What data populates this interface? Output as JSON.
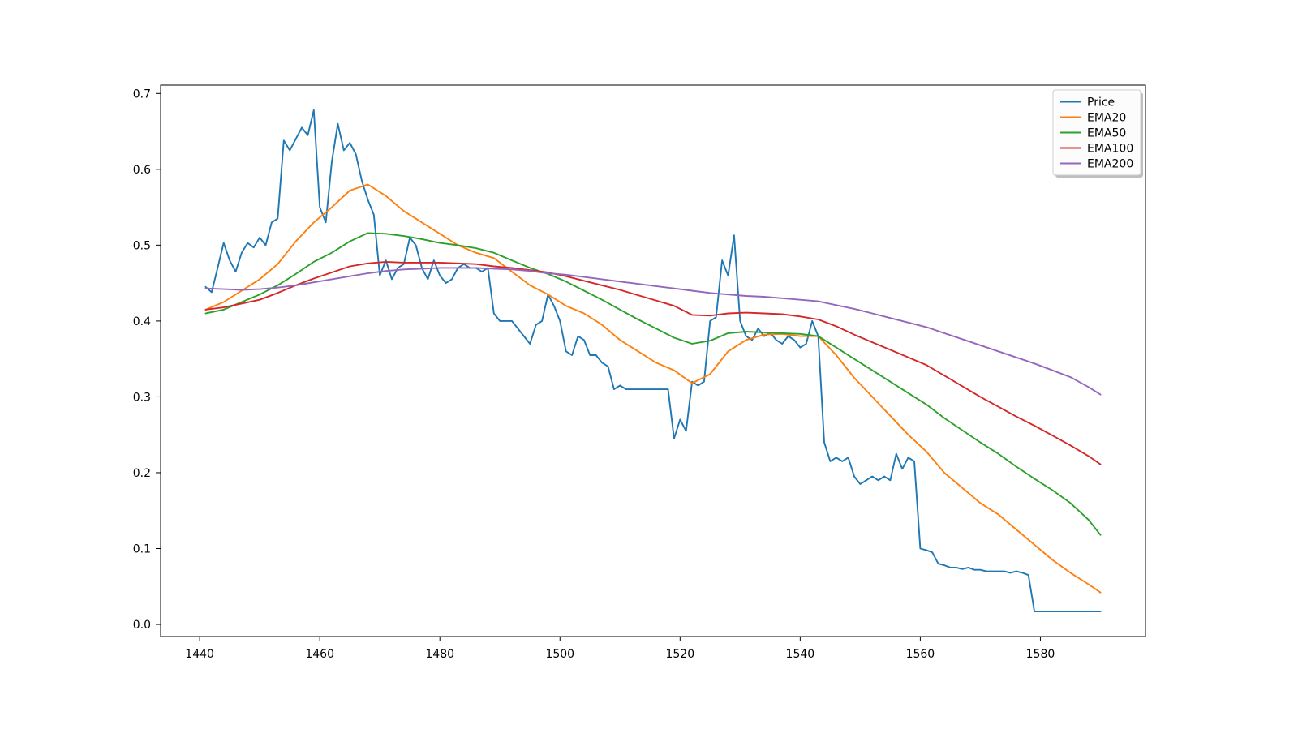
{
  "figure": {
    "background": "#ffffff"
  },
  "chart_data": {
    "type": "line",
    "title": "",
    "xlabel": "",
    "ylabel": "",
    "grid": false,
    "xlim": [
      1433.5,
      1597.5
    ],
    "ylim": [
      -0.016,
      0.711
    ],
    "x_ticks": [
      1440,
      1460,
      1480,
      1500,
      1520,
      1540,
      1560,
      1580
    ],
    "y_ticks": [
      0.0,
      0.1,
      0.2,
      0.3,
      0.4,
      0.5,
      0.6,
      0.7
    ],
    "legend": {
      "location": "upper right",
      "entries": [
        "Price",
        "EMA20",
        "EMA50",
        "EMA100",
        "EMA200"
      ]
    },
    "ema_x": [
      1441,
      1444,
      1447,
      1450,
      1453,
      1456,
      1459,
      1462,
      1465,
      1468,
      1471,
      1474,
      1477,
      1480,
      1483,
      1486,
      1489,
      1492,
      1495,
      1498,
      1501,
      1504,
      1507,
      1510,
      1513,
      1516,
      1519,
      1522,
      1525,
      1528,
      1531,
      1534,
      1537,
      1540,
      1543,
      1546,
      1549,
      1552,
      1555,
      1558,
      1561,
      1564,
      1567,
      1570,
      1573,
      1576,
      1579,
      1582,
      1585,
      1588,
      1590
    ],
    "series": [
      {
        "name": "Price",
        "color": "#1f77b4",
        "x_start": 1441,
        "x_step": 1,
        "y": [
          0.445,
          0.438,
          0.47,
          0.503,
          0.48,
          0.465,
          0.49,
          0.503,
          0.497,
          0.51,
          0.5,
          0.53,
          0.535,
          0.638,
          0.625,
          0.64,
          0.655,
          0.645,
          0.678,
          0.55,
          0.53,
          0.61,
          0.66,
          0.625,
          0.635,
          0.62,
          0.585,
          0.56,
          0.54,
          0.46,
          0.48,
          0.455,
          0.47,
          0.475,
          0.51,
          0.5,
          0.47,
          0.455,
          0.48,
          0.46,
          0.45,
          0.455,
          0.47,
          0.475,
          0.47,
          0.47,
          0.465,
          0.47,
          0.41,
          0.4,
          0.4,
          0.4,
          0.39,
          0.38,
          0.37,
          0.395,
          0.4,
          0.435,
          0.42,
          0.4,
          0.36,
          0.355,
          0.38,
          0.375,
          0.355,
          0.355,
          0.345,
          0.34,
          0.31,
          0.315,
          0.31,
          0.31,
          0.31,
          0.31,
          0.31,
          0.31,
          0.31,
          0.31,
          0.245,
          0.27,
          0.255,
          0.32,
          0.315,
          0.32,
          0.4,
          0.405,
          0.48,
          0.46,
          0.513,
          0.4,
          0.38,
          0.375,
          0.39,
          0.38,
          0.385,
          0.375,
          0.37,
          0.38,
          0.375,
          0.365,
          0.37,
          0.4,
          0.38,
          0.24,
          0.215,
          0.22,
          0.215,
          0.22,
          0.195,
          0.185,
          0.19,
          0.195,
          0.19,
          0.195,
          0.19,
          0.225,
          0.205,
          0.22,
          0.215,
          0.1,
          0.098,
          0.095,
          0.08,
          0.078,
          0.075,
          0.075,
          0.073,
          0.075,
          0.072,
          0.072,
          0.07,
          0.07,
          0.07,
          0.07,
          0.068,
          0.07,
          0.068,
          0.065,
          0.017,
          0.017,
          0.017,
          0.017,
          0.017,
          0.017,
          0.017,
          0.017,
          0.017,
          0.017,
          0.017,
          0.017
        ]
      },
      {
        "name": "EMA20",
        "color": "#ff7f0e",
        "x_ref": "ema_x",
        "y": [
          0.415,
          0.425,
          0.44,
          0.455,
          0.475,
          0.505,
          0.53,
          0.55,
          0.572,
          0.58,
          0.565,
          0.545,
          0.53,
          0.515,
          0.5,
          0.49,
          0.483,
          0.465,
          0.447,
          0.435,
          0.42,
          0.41,
          0.395,
          0.375,
          0.36,
          0.345,
          0.335,
          0.318,
          0.33,
          0.36,
          0.375,
          0.382,
          0.383,
          0.38,
          0.38,
          0.355,
          0.325,
          0.3,
          0.275,
          0.25,
          0.228,
          0.2,
          0.18,
          0.16,
          0.145,
          0.125,
          0.105,
          0.085,
          0.068,
          0.053,
          0.042
        ]
      },
      {
        "name": "EMA50",
        "color": "#2ca02c",
        "x_ref": "ema_x",
        "y": [
          0.41,
          0.415,
          0.425,
          0.435,
          0.447,
          0.462,
          0.478,
          0.49,
          0.505,
          0.516,
          0.515,
          0.512,
          0.508,
          0.503,
          0.5,
          0.496,
          0.49,
          0.48,
          0.47,
          0.462,
          0.452,
          0.44,
          0.428,
          0.415,
          0.402,
          0.39,
          0.378,
          0.37,
          0.374,
          0.384,
          0.386,
          0.385,
          0.384,
          0.383,
          0.38,
          0.365,
          0.35,
          0.335,
          0.32,
          0.305,
          0.29,
          0.272,
          0.256,
          0.24,
          0.225,
          0.208,
          0.192,
          0.177,
          0.16,
          0.138,
          0.118
        ]
      },
      {
        "name": "EMA100",
        "color": "#d62728",
        "x_ref": "ema_x",
        "y": [
          0.415,
          0.418,
          0.423,
          0.428,
          0.437,
          0.447,
          0.456,
          0.464,
          0.472,
          0.476,
          0.478,
          0.477,
          0.477,
          0.477,
          0.476,
          0.475,
          0.472,
          0.47,
          0.467,
          0.464,
          0.459,
          0.453,
          0.447,
          0.441,
          0.434,
          0.427,
          0.42,
          0.408,
          0.407,
          0.41,
          0.411,
          0.41,
          0.409,
          0.406,
          0.402,
          0.393,
          0.382,
          0.372,
          0.362,
          0.352,
          0.342,
          0.328,
          0.314,
          0.3,
          0.287,
          0.274,
          0.262,
          0.249,
          0.236,
          0.222,
          0.211
        ]
      },
      {
        "name": "EMA200",
        "color": "#9467bd",
        "x_ref": "ema_x",
        "y": [
          0.443,
          0.442,
          0.441,
          0.442,
          0.444,
          0.447,
          0.451,
          0.455,
          0.459,
          0.463,
          0.466,
          0.468,
          0.469,
          0.47,
          0.47,
          0.47,
          0.469,
          0.468,
          0.466,
          0.463,
          0.461,
          0.458,
          0.455,
          0.452,
          0.449,
          0.446,
          0.443,
          0.44,
          0.437,
          0.435,
          0.433,
          0.432,
          0.43,
          0.428,
          0.426,
          0.421,
          0.416,
          0.41,
          0.404,
          0.398,
          0.392,
          0.384,
          0.376,
          0.368,
          0.36,
          0.352,
          0.344,
          0.335,
          0.326,
          0.313,
          0.303
        ]
      }
    ]
  }
}
